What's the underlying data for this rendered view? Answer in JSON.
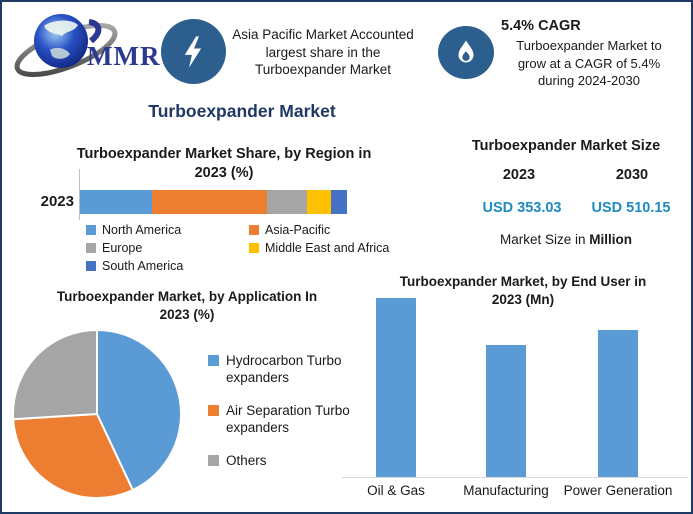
{
  "theme": {
    "border_navy": "#1F3A63",
    "title_navy": "#1F3864",
    "badge_blue": "#2D5F8E",
    "value_blue": "#1E8BC3",
    "logo_blue": "#2B3990",
    "axis_gray": "#BFBFBF",
    "baseline_gray": "#D9D9D9"
  },
  "header": {
    "logo": {
      "text": "MMR"
    },
    "highlight": {
      "lines": [
        "Asia Pacific Market Accounted",
        "largest share in the",
        "Turboexpander Market"
      ]
    },
    "cagr": {
      "title": "5.4% CAGR",
      "lines": [
        "Turboexpander Market to",
        "grow at a CAGR of 5.4%",
        "during 2024-2030"
      ]
    }
  },
  "main_title": "Turboexpander Market",
  "market_size": {
    "title": "Turboexpander Market Size",
    "years": [
      "2023",
      "2030"
    ],
    "values": [
      "USD 353.03",
      "USD 510.15"
    ],
    "note_prefix": "Market Size in ",
    "note_bold": "Million"
  },
  "chart_data": [
    {
      "id": "region-share",
      "type": "bar",
      "variant": "stacked-horizontal",
      "title": "Turboexpander Market Share, by Region in 2023 (%)",
      "title_lines": [
        "Turboexpander Market Share, by Region in",
        "2023 (%)"
      ],
      "categories": [
        "2023"
      ],
      "series": [
        {
          "name": "North America",
          "values": [
            27
          ],
          "color": "#5B9BD5"
        },
        {
          "name": "Asia-Pacific",
          "values": [
            43
          ],
          "color": "#ED7D31"
        },
        {
          "name": "Europe",
          "values": [
            15
          ],
          "color": "#A5A5A5"
        },
        {
          "name": "Middle East and Africa",
          "values": [
            9
          ],
          "color": "#FFC000"
        },
        {
          "name": "South America",
          "values": [
            6
          ],
          "color": "#4472C4"
        }
      ],
      "unit": "%",
      "legend_position": "bottom",
      "xlim": [
        0,
        100
      ]
    },
    {
      "id": "application-share",
      "type": "pie",
      "title": "Turboexpander Market, by Application In 2023 (%)",
      "title_lines": [
        "Turboexpander Market, by Application In",
        "2023 (%)"
      ],
      "slices": [
        {
          "name": "Hydrocarbon Turbo expanders",
          "legend_lines": [
            "Hydrocarbon Turbo",
            "expanders"
          ],
          "value": 43,
          "color": "#5B9BD5"
        },
        {
          "name": "Air Separation Turbo expanders",
          "legend_lines": [
            "Air Separation Turbo",
            "expanders"
          ],
          "value": 31,
          "color": "#ED7D31"
        },
        {
          "name": "Others",
          "legend_lines": [
            "Others"
          ],
          "value": 26,
          "color": "#A5A5A5"
        }
      ],
      "unit": "%",
      "start_angle": 0,
      "legend_position": "right"
    },
    {
      "id": "end-user",
      "type": "bar",
      "variant": "vertical",
      "title": "Turboexpander Market, by End User in 2023 (Mn)",
      "title_lines": [
        "Turboexpander Market, by End User in",
        "2023 (Mn)"
      ],
      "categories": [
        "Oil & Gas",
        "Manufacturing",
        "Power Generation"
      ],
      "values": [
        100,
        74,
        82
      ],
      "value_scale": "relative",
      "bar_color": "#5B9BD5",
      "grid": false,
      "axis_labels_visible": false
    }
  ]
}
